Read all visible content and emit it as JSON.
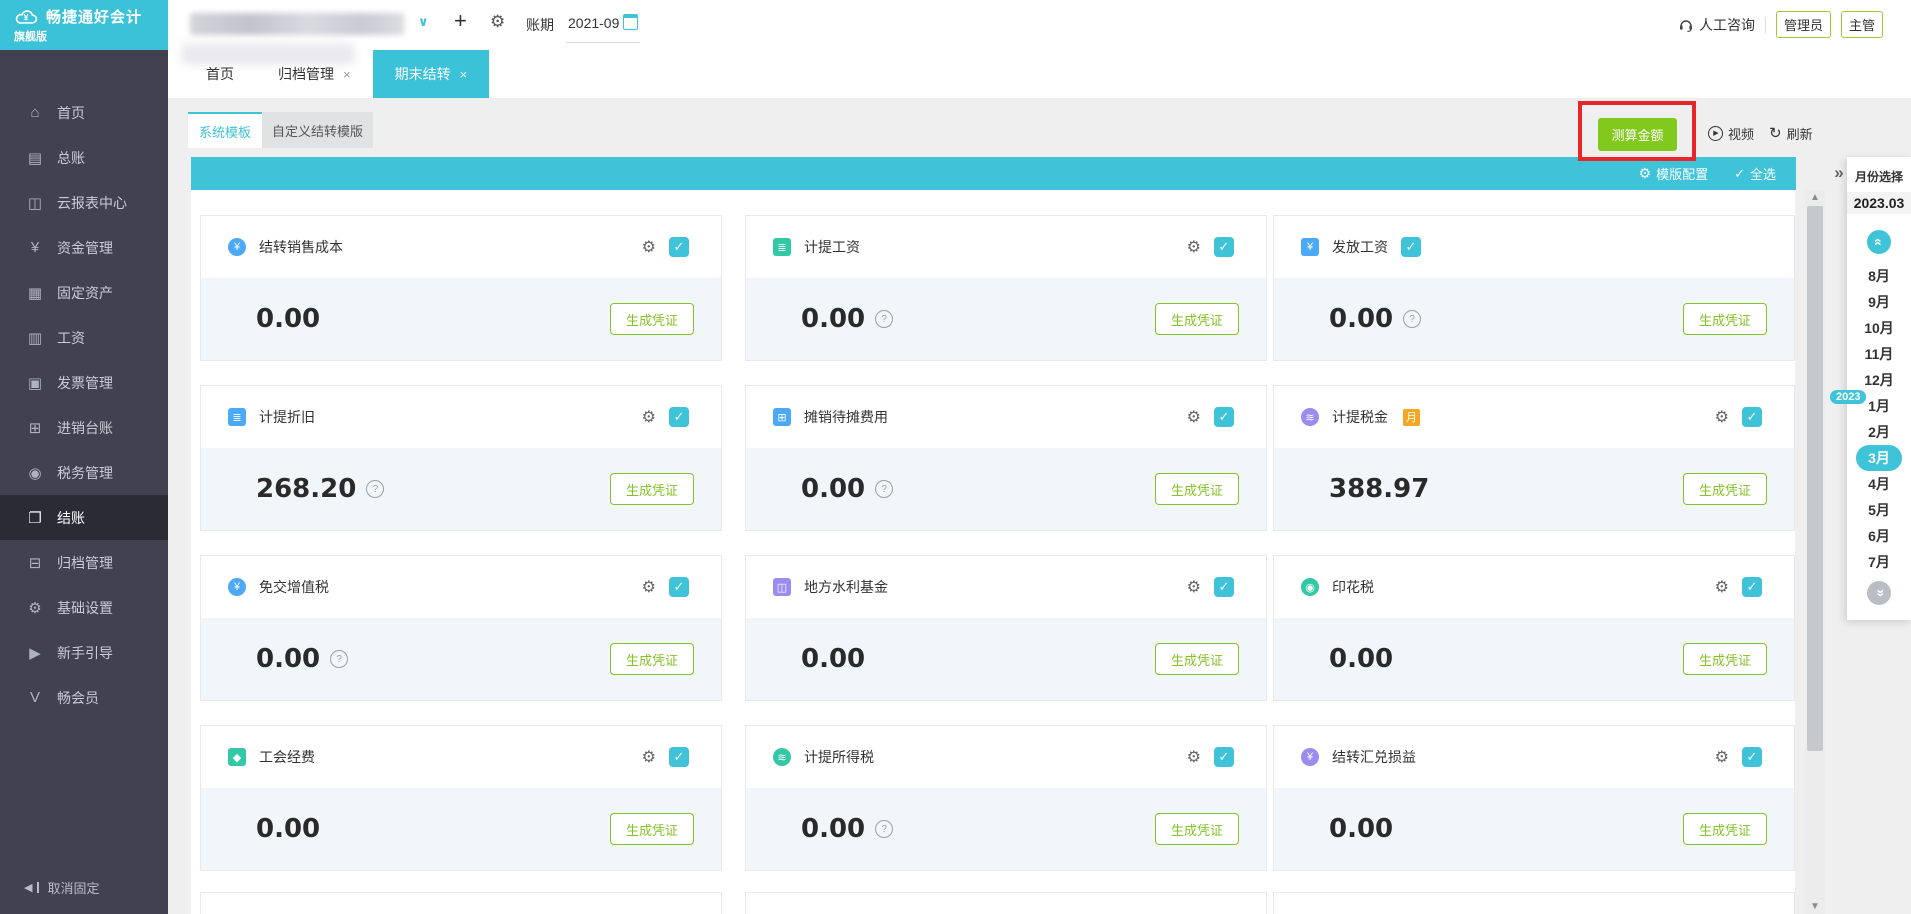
{
  "colors": {
    "accent": "#3ec3d8",
    "measure_green": "#82c91e",
    "outline_green": "#84c225",
    "highlight_red": "#e8262a",
    "badge_orange": "#f5a623",
    "sidebar_bg": "#41414f",
    "sidebar_active_bg": "#2b2b36",
    "card_body_bg": "#f0f6fa"
  },
  "brand": {
    "title": "畅捷通好会计",
    "subtitle": "旗舰版"
  },
  "topbar": {
    "dropdown_glyph": "∨",
    "add_glyph": "+",
    "gear_glyph": "⚙",
    "period_label": "账期",
    "period_value": "2021-09",
    "support_label": "人工咨询",
    "roles": [
      "管理员",
      "主管"
    ]
  },
  "tabs": [
    {
      "id": "home",
      "label": "首页",
      "closable": false,
      "active": false
    },
    {
      "id": "archive",
      "label": "归档管理",
      "closable": true,
      "active": false
    },
    {
      "id": "period-end-carryover",
      "label": "期末结转",
      "closable": true,
      "active": true
    }
  ],
  "window_controls": {
    "close_glyph": "×"
  },
  "subtabs": {
    "system": "系统模板",
    "custom": "自定义结转模版"
  },
  "toolbar": {
    "measure_label": "测算金额",
    "video_label": "视频",
    "video_glyph": "▶",
    "refresh_label": "刷新",
    "refresh_glyph": "↻"
  },
  "banner": {
    "gear_glyph": "⚙",
    "template_config_label": "模版配置",
    "check_glyph": "✓",
    "select_all_label": "全选",
    "collapse_glyph": "»"
  },
  "sidebar": {
    "pin_label": "取消固定",
    "pin_glyph": "◀",
    "items": [
      {
        "id": "home",
        "label": "首页",
        "icon": "home-icon",
        "glyph": "⌂",
        "active": false
      },
      {
        "id": "general-ledger",
        "label": "总账",
        "icon": "ledger-icon",
        "glyph": "▤",
        "active": false
      },
      {
        "id": "cloud-reports",
        "label": "云报表中心",
        "icon": "report-chart-icon",
        "glyph": "◫",
        "active": false
      },
      {
        "id": "funds",
        "label": "资金管理",
        "icon": "money-bag-icon",
        "glyph": "¥",
        "active": false
      },
      {
        "id": "fixed-assets",
        "label": "固定资产",
        "icon": "building-icon",
        "glyph": "▦",
        "active": false
      },
      {
        "id": "payroll",
        "label": "工资",
        "icon": "payroll-sheet-icon",
        "glyph": "▥",
        "active": false
      },
      {
        "id": "invoices",
        "label": "发票管理",
        "icon": "invoice-icon",
        "glyph": "▣",
        "active": false
      },
      {
        "id": "purchase-sales",
        "label": "进销台账",
        "icon": "inout-ledger-icon",
        "glyph": "⊞",
        "active": false
      },
      {
        "id": "tax",
        "label": "税务管理",
        "icon": "tax-icon",
        "glyph": "◉",
        "active": false
      },
      {
        "id": "closing",
        "label": "结账",
        "icon": "closing-book-icon",
        "glyph": "❐",
        "active": true
      },
      {
        "id": "archive",
        "label": "归档管理",
        "icon": "archive-box-icon",
        "glyph": "⊟",
        "active": false
      },
      {
        "id": "settings",
        "label": "基础设置",
        "icon": "gear-icon",
        "glyph": "⚙",
        "active": false
      },
      {
        "id": "guide",
        "label": "新手引导",
        "icon": "video-guide-icon",
        "glyph": "▶",
        "active": false
      },
      {
        "id": "membership",
        "label": "畅会员",
        "icon": "vip-icon",
        "glyph": "V",
        "active": false
      }
    ]
  },
  "cards": {
    "generate_label": "生成凭证",
    "gear_glyph": "⚙",
    "check_glyph": "✓",
    "help_glyph": "?",
    "month_badge": "月",
    "items": [
      {
        "id": "carryover-sales-cost",
        "title": "结转销售成本",
        "amount": "0.00",
        "gear": true,
        "help": false,
        "badge": false,
        "icon": {
          "name": "money-circle-icon",
          "glyph": "¥",
          "color": "#4ba9f5",
          "shape": "circle"
        }
      },
      {
        "id": "accrue-wages",
        "title": "计提工资",
        "amount": "0.00",
        "gear": true,
        "help": true,
        "badge": false,
        "icon": {
          "name": "document-icon",
          "glyph": "≣",
          "color": "#33c9a7",
          "shape": "square"
        }
      },
      {
        "id": "pay-wages",
        "title": "发放工资",
        "amount": "0.00",
        "gear": false,
        "help": true,
        "badge": false,
        "icon": {
          "name": "money-square-icon",
          "glyph": "¥",
          "color": "#4ba9f5",
          "shape": "square"
        }
      },
      {
        "id": "accrue-depreciation",
        "title": "计提折旧",
        "amount": "268.20",
        "gear": true,
        "help": true,
        "badge": false,
        "icon": {
          "name": "document-icon",
          "glyph": "≣",
          "color": "#4ba9f5",
          "shape": "square"
        }
      },
      {
        "id": "amortize-prepaid",
        "title": "摊销待摊费用",
        "amount": "0.00",
        "gear": true,
        "help": true,
        "badge": false,
        "icon": {
          "name": "grid-icon",
          "glyph": "⊞",
          "color": "#4ba9f5",
          "shape": "square"
        }
      },
      {
        "id": "accrue-taxes",
        "title": "计提税金",
        "amount": "388.97",
        "gear": true,
        "help": false,
        "badge": true,
        "icon": {
          "name": "coins-icon",
          "glyph": "≋",
          "color": "#9b8cf0",
          "shape": "circle"
        }
      },
      {
        "id": "vat-exempt",
        "title": "免交增值税",
        "amount": "0.00",
        "gear": true,
        "help": true,
        "badge": false,
        "icon": {
          "name": "money-circle-icon",
          "glyph": "¥",
          "color": "#4ba9f5",
          "shape": "circle"
        }
      },
      {
        "id": "local-water-fund",
        "title": "地方水利基金",
        "amount": "0.00",
        "gear": true,
        "help": false,
        "badge": false,
        "icon": {
          "name": "chart-square-icon",
          "glyph": "◫",
          "color": "#9b8cf0",
          "shape": "square"
        }
      },
      {
        "id": "stamp-tax",
        "title": "印花税",
        "amount": "0.00",
        "gear": true,
        "help": false,
        "badge": false,
        "icon": {
          "name": "stamp-icon",
          "glyph": "◉",
          "color": "#33c9a7",
          "shape": "circle"
        }
      },
      {
        "id": "union-funds",
        "title": "工会经费",
        "amount": "0.00",
        "gear": true,
        "help": false,
        "badge": false,
        "icon": {
          "name": "shield-icon",
          "glyph": "◆",
          "color": "#33c9a7",
          "shape": "square"
        }
      },
      {
        "id": "accrue-income-tax",
        "title": "计提所得税",
        "amount": "0.00",
        "gear": true,
        "help": true,
        "badge": false,
        "icon": {
          "name": "coins-icon",
          "glyph": "≋",
          "color": "#33c9a7",
          "shape": "circle"
        }
      },
      {
        "id": "carryover-fx",
        "title": "结转汇兑损益",
        "amount": "0.00",
        "gear": true,
        "help": false,
        "badge": false,
        "icon": {
          "name": "exchange-icon",
          "glyph": "¥",
          "color": "#9b8cf0",
          "shape": "circle"
        }
      }
    ]
  },
  "month_panel": {
    "title": "月份选择",
    "current_period": "2023.03",
    "year_badge": "2023",
    "months": [
      "8月",
      "9月",
      "10月",
      "11月",
      "12月",
      "1月",
      "2月",
      "3月",
      "4月",
      "5月",
      "6月",
      "7月"
    ],
    "active_month": "3月",
    "up_glyph": "«",
    "down_glyph": "«"
  }
}
